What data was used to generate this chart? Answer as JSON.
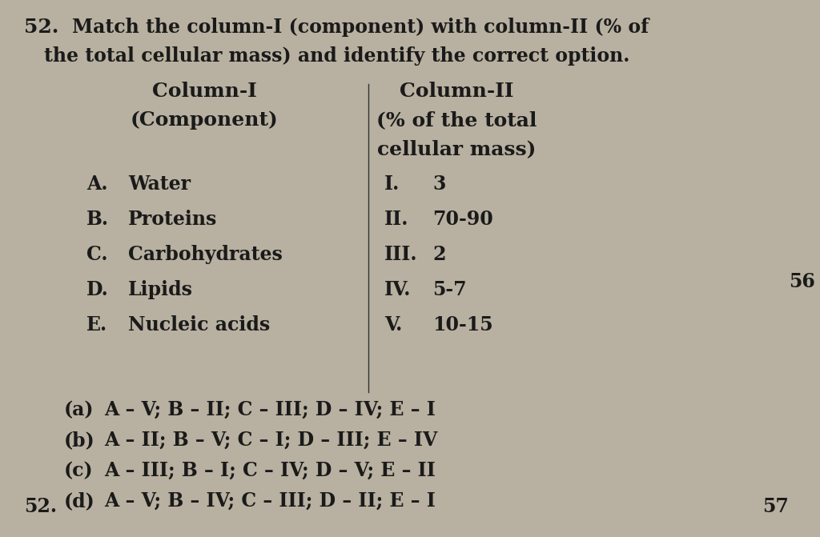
{
  "bg_color": "#b8b0a0",
  "question_number": "52.",
  "question_line1": "Match the column-I (component) with column-II (% of",
  "question_line2": "the total cellular mass) and identify the correct option.",
  "col1_header": "Column-I",
  "col1_subheader": "(Component)",
  "col2_header": "Column-II",
  "col2_subheader_line1": "(% of the total",
  "col2_subheader_line2": "cellular mass)",
  "col1_items": [
    [
      "A.",
      "Water"
    ],
    [
      "B.",
      "Proteins"
    ],
    [
      "C.",
      "Carbohydrates"
    ],
    [
      "D.",
      "Lipids"
    ],
    [
      "E.",
      "Nucleic acids"
    ]
  ],
  "col2_items": [
    [
      "I.",
      "3"
    ],
    [
      "II.",
      "70-90"
    ],
    [
      "III.",
      "2"
    ],
    [
      "IV.",
      "5-7"
    ],
    [
      "V.",
      "10-15"
    ]
  ],
  "options": [
    [
      "(a)",
      "A – V; B – II; C – III; D – IV; E – I"
    ],
    [
      "(b)",
      "A – II; B – V; C – I; D – III; E – IV"
    ],
    [
      "(c)",
      "A – III; B – I; C – IV; D – V; E – II"
    ],
    [
      "(d)",
      "A – V; B – IV; C – III; D – II; E – I"
    ]
  ],
  "side_number": "56",
  "bottom_number": "57",
  "bottom_left": "52.",
  "text_color": "#1a1a1a"
}
